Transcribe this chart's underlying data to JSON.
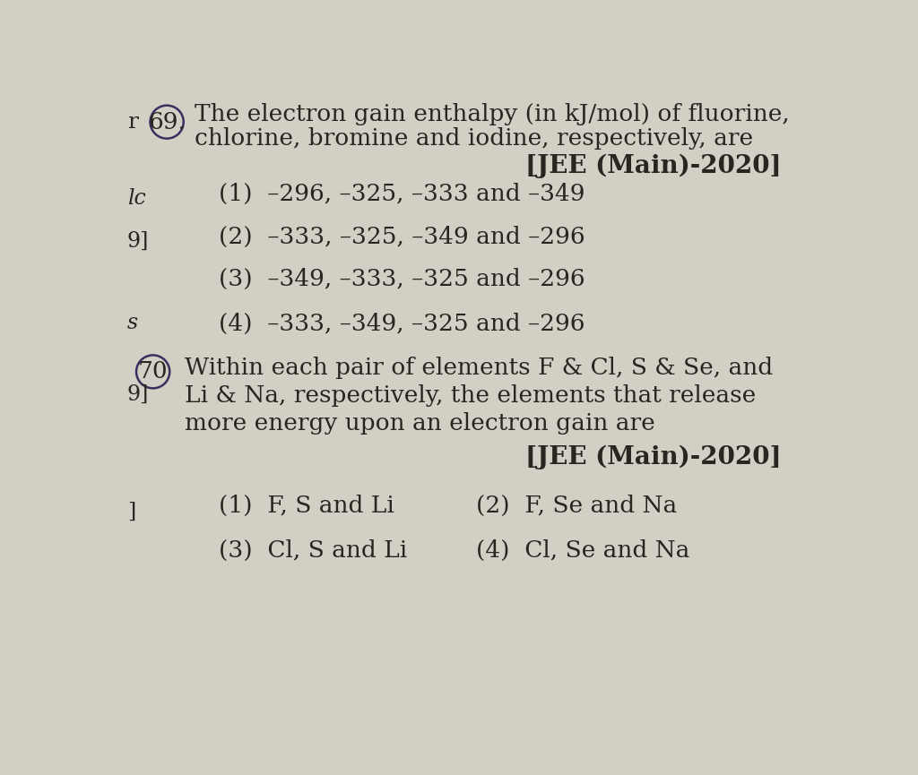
{
  "background_color": "#d4cfc4",
  "q69_line1": "The electron gain enthalpy (in kJ/mol) of fluorine,",
  "q69_line2": "chlorine, bromine and iodine, respectively, are",
  "q69_source": "[JEE (Main)-2020]",
  "q69_opt1": "(1)  –296, –325, –333 and –349",
  "q69_opt2": "(2)  –333, –325, –349 and –296",
  "q69_opt3": "(3)  –349, –333, –325 and –296",
  "q69_opt4": "(4)  –333, –349, –325 and –296",
  "q70_line1": "Within each pair of elements F & Cl, S & Se, and",
  "q70_line2": "Li & Na, respectively, the elements that release",
  "q70_line3": "more energy upon an electron gain are",
  "q70_source": "[JEE (Main)-2020]",
  "q70_opt1_left": "(1)  F, S and Li",
  "q70_opt2_right": "(2)  F, Se and Na",
  "q70_opt3_left": "(3)  Cl, S and Li",
  "q70_opt4_right": "(4)  Cl, Se and Na",
  "font_size_main": 19,
  "font_size_source": 20,
  "text_color": "#2a2520"
}
